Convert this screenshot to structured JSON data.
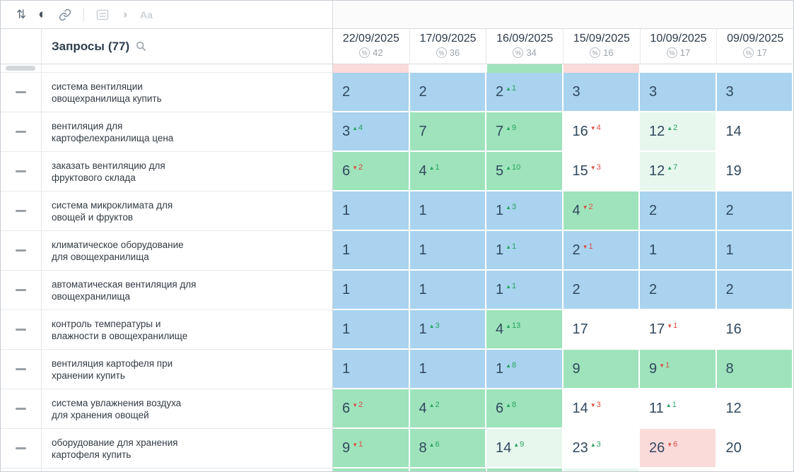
{
  "toolbar": {
    "sort_glyph": "⇅",
    "contrast_glyph": "◐",
    "disabled_contrast_glyph": "◑",
    "font_case_label": "Aa"
  },
  "header": {
    "title": "Запросы",
    "count": "(77)",
    "percent_symbol": "%",
    "columns": [
      {
        "date": "22/09/2025",
        "percent": "42",
        "strip": "pink"
      },
      {
        "date": "17/09/2025",
        "percent": "36",
        "strip": "none"
      },
      {
        "date": "16/09/2025",
        "percent": "34",
        "strip": "green"
      },
      {
        "date": "15/09/2025",
        "percent": "16",
        "strip": "pink"
      },
      {
        "date": "10/09/2025",
        "percent": "17",
        "strip": "none"
      },
      {
        "date": "09/09/2025",
        "percent": "17",
        "strip": "none"
      }
    ]
  },
  "colors": {
    "position_top3": "#a9d3ef",
    "position_top10": "#9ee3bb",
    "position_improved_light": "#e7f7ee",
    "position_dropped": "#fbdada",
    "change_up": "#27a35f",
    "change_down": "#df4b42"
  },
  "rows": [
    {
      "keyword": "система вентиляции овощехранилища купить",
      "cells": [
        {
          "v": "2",
          "bg": "blue"
        },
        {
          "v": "2",
          "bg": "blue"
        },
        {
          "v": "2",
          "chg": "1",
          "dir": "up",
          "bg": "blue"
        },
        {
          "v": "3",
          "bg": "blue"
        },
        {
          "v": "3",
          "bg": "blue"
        },
        {
          "v": "3",
          "bg": "blue"
        }
      ]
    },
    {
      "keyword": "вентиляция для картофелехранилища цена",
      "cells": [
        {
          "v": "3",
          "chg": "4",
          "dir": "up",
          "bg": "blue"
        },
        {
          "v": "7",
          "bg": "green"
        },
        {
          "v": "7",
          "chg": "9",
          "dir": "up",
          "bg": "green"
        },
        {
          "v": "16",
          "chg": "4",
          "dir": "down",
          "bg": "white"
        },
        {
          "v": "12",
          "chg": "2",
          "dir": "up",
          "bg": "lightgreen"
        },
        {
          "v": "14",
          "bg": "white"
        }
      ]
    },
    {
      "keyword": "заказать вентиляцию для фруктового склада",
      "cells": [
        {
          "v": "6",
          "chg": "2",
          "dir": "down",
          "bg": "green"
        },
        {
          "v": "4",
          "chg": "1",
          "dir": "up",
          "bg": "green"
        },
        {
          "v": "5",
          "chg": "10",
          "dir": "up",
          "bg": "green"
        },
        {
          "v": "15",
          "chg": "3",
          "dir": "down",
          "bg": "white"
        },
        {
          "v": "12",
          "chg": "7",
          "dir": "up",
          "bg": "lightgreen"
        },
        {
          "v": "19",
          "bg": "white"
        }
      ]
    },
    {
      "keyword": "система микроклимата для овощей и фруктов",
      "cells": [
        {
          "v": "1",
          "bg": "blue"
        },
        {
          "v": "1",
          "bg": "blue"
        },
        {
          "v": "1",
          "chg": "3",
          "dir": "up",
          "bg": "blue"
        },
        {
          "v": "4",
          "chg": "2",
          "dir": "down",
          "bg": "green"
        },
        {
          "v": "2",
          "bg": "blue"
        },
        {
          "v": "2",
          "bg": "blue"
        }
      ]
    },
    {
      "keyword": "климатическое оборудование для овощехранилища",
      "cells": [
        {
          "v": "1",
          "bg": "blue"
        },
        {
          "v": "1",
          "bg": "blue"
        },
        {
          "v": "1",
          "chg": "1",
          "dir": "up",
          "bg": "blue"
        },
        {
          "v": "2",
          "chg": "1",
          "dir": "down",
          "bg": "blue"
        },
        {
          "v": "1",
          "bg": "blue"
        },
        {
          "v": "1",
          "bg": "blue"
        }
      ]
    },
    {
      "keyword": "автоматическая вентиляция для овощехранилища",
      "cells": [
        {
          "v": "1",
          "bg": "blue"
        },
        {
          "v": "1",
          "bg": "blue"
        },
        {
          "v": "1",
          "chg": "1",
          "dir": "up",
          "bg": "blue"
        },
        {
          "v": "2",
          "bg": "blue"
        },
        {
          "v": "2",
          "bg": "blue"
        },
        {
          "v": "2",
          "bg": "blue"
        }
      ]
    },
    {
      "keyword": "контроль температуры и влажности в овощехранилище",
      "cells": [
        {
          "v": "1",
          "bg": "blue"
        },
        {
          "v": "1",
          "chg": "3",
          "dir": "up",
          "bg": "blue"
        },
        {
          "v": "4",
          "chg": "13",
          "dir": "up",
          "bg": "green"
        },
        {
          "v": "17",
          "bg": "white"
        },
        {
          "v": "17",
          "chg": "1",
          "dir": "down",
          "bg": "white"
        },
        {
          "v": "16",
          "bg": "white"
        }
      ]
    },
    {
      "keyword": "вентиляция картофеля при хранении купить",
      "cells": [
        {
          "v": "1",
          "bg": "blue"
        },
        {
          "v": "1",
          "bg": "blue"
        },
        {
          "v": "1",
          "chg": "8",
          "dir": "up",
          "bg": "blue"
        },
        {
          "v": "9",
          "bg": "green"
        },
        {
          "v": "9",
          "chg": "1",
          "dir": "down",
          "bg": "green"
        },
        {
          "v": "8",
          "bg": "green"
        }
      ]
    },
    {
      "keyword": "система увлажнения воздуха для хранения овощей",
      "cells": [
        {
          "v": "6",
          "chg": "2",
          "dir": "down",
          "bg": "green"
        },
        {
          "v": "4",
          "chg": "2",
          "dir": "up",
          "bg": "green"
        },
        {
          "v": "6",
          "chg": "8",
          "dir": "up",
          "bg": "green"
        },
        {
          "v": "14",
          "chg": "3",
          "dir": "down",
          "bg": "white"
        },
        {
          "v": "11",
          "chg": "1",
          "dir": "up",
          "bg": "white"
        },
        {
          "v": "12",
          "bg": "white"
        }
      ]
    },
    {
      "keyword": "оборудование для хранения картофеля купить",
      "cells": [
        {
          "v": "9",
          "chg": "1",
          "dir": "down",
          "bg": "green"
        },
        {
          "v": "8",
          "chg": "6",
          "dir": "up",
          "bg": "green"
        },
        {
          "v": "14",
          "chg": "9",
          "dir": "up",
          "bg": "lightgreen"
        },
        {
          "v": "23",
          "chg": "3",
          "dir": "up",
          "bg": "white"
        },
        {
          "v": "26",
          "chg": "6",
          "dir": "down",
          "bg": "pink"
        },
        {
          "v": "20",
          "bg": "white"
        }
      ]
    }
  ],
  "partial_row": {
    "cells": [
      "green",
      "green",
      "green",
      "lightgreen",
      "white",
      "white"
    ]
  }
}
